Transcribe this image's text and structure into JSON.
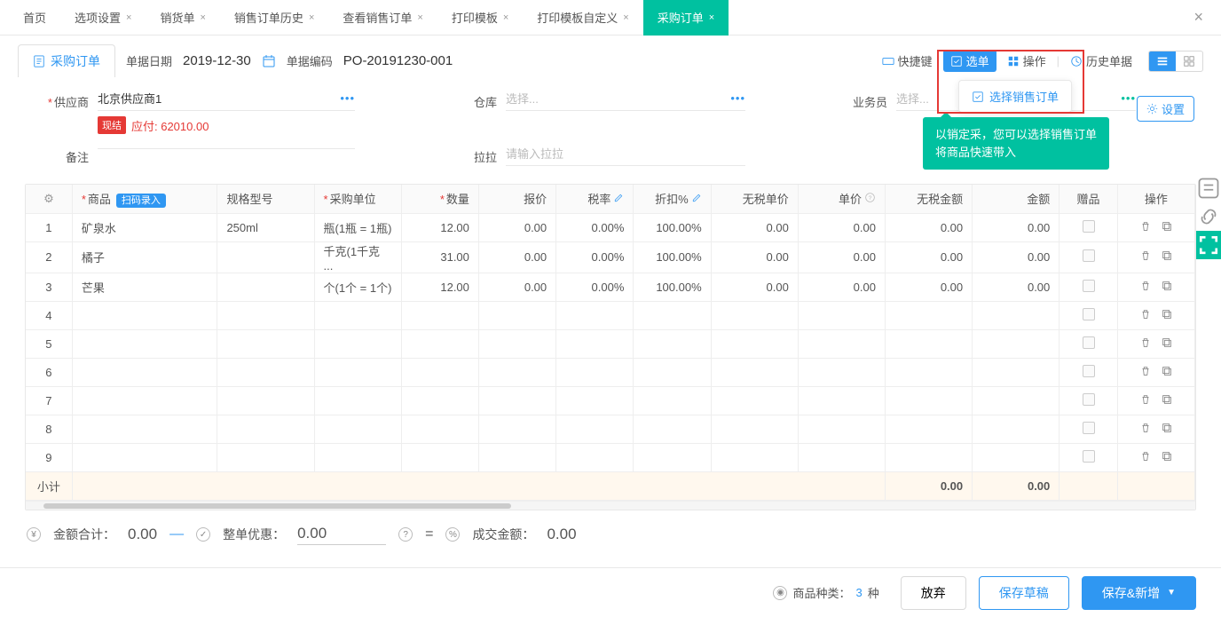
{
  "tabs": [
    {
      "label": "首页",
      "closable": false
    },
    {
      "label": "选项设置",
      "closable": true
    },
    {
      "label": "销货单",
      "closable": true
    },
    {
      "label": "销售订单历史",
      "closable": true
    },
    {
      "label": "查看销售订单",
      "closable": true
    },
    {
      "label": "打印模板",
      "closable": true
    },
    {
      "label": "打印模板自定义",
      "closable": true
    },
    {
      "label": "采购订单",
      "closable": true,
      "active": true
    }
  ],
  "header": {
    "doc_title": "采购订单",
    "date_label": "单据日期",
    "date_value": "2019-12-30",
    "code_label": "单据编码",
    "code_value": "PO-20191230-001",
    "shortcut": "快捷键",
    "select_doc": "选单",
    "operate": "操作",
    "history": "历史单据",
    "dropdown_item": "选择销售订单",
    "tooltip": "以销定采，您可以选择销售订单将商品快速带入",
    "settings": "设置"
  },
  "form": {
    "supplier_label": "供应商",
    "supplier_value": "北京供应商1",
    "pay_tag": "现结",
    "pay_text": "应付: 62010.00",
    "warehouse_label": "仓库",
    "warehouse_placeholder": "选择...",
    "sales_label": "业务员",
    "sales_placeholder": "选择...",
    "remark_label": "备注",
    "lala_label": "拉拉",
    "lala_placeholder": "请输入拉拉"
  },
  "table": {
    "columns": {
      "product": "商品",
      "scan": "扫码录入",
      "spec": "规格型号",
      "purchase_unit": "采购单位",
      "qty": "数量",
      "quote": "报价",
      "tax_rate": "税率",
      "discount": "折扣%",
      "price_no_tax": "无税单价",
      "price": "单价",
      "amount_no_tax": "无税金额",
      "amount": "金额",
      "gift": "赠品",
      "action": "操作"
    },
    "rows": [
      {
        "idx": 1,
        "product": "矿泉水",
        "spec": "250ml",
        "unit": "瓶(1瓶 = 1瓶)",
        "qty": "12.00",
        "quote": "0.00",
        "tax": "0.00%",
        "disc": "100.00%",
        "pnt": "0.00",
        "price": "0.00",
        "ant": "0.00",
        "amt": "0.00"
      },
      {
        "idx": 2,
        "product": "橘子",
        "spec": "",
        "unit": "千克(1千克 ...",
        "qty": "31.00",
        "quote": "0.00",
        "tax": "0.00%",
        "disc": "100.00%",
        "pnt": "0.00",
        "price": "0.00",
        "ant": "0.00",
        "amt": "0.00"
      },
      {
        "idx": 3,
        "product": "芒果",
        "spec": "",
        "unit": "个(1个 = 1个)",
        "qty": "12.00",
        "quote": "0.00",
        "tax": "0.00%",
        "disc": "100.00%",
        "pnt": "0.00",
        "price": "0.00",
        "ant": "0.00",
        "amt": "0.00"
      },
      {
        "idx": 4
      },
      {
        "idx": 5
      },
      {
        "idx": 6
      },
      {
        "idx": 7
      },
      {
        "idx": 8
      },
      {
        "idx": 9
      }
    ],
    "subtotal_label": "小计",
    "subtotal_ant": "0.00",
    "subtotal_amt": "0.00"
  },
  "totals": {
    "sum_label": "金额合计：",
    "sum_value": "0.00",
    "disc_label": "整单优惠：",
    "disc_value": "0.00",
    "deal_label": "成交金额：",
    "deal_value": "0.00"
  },
  "footer": {
    "kinds_label": "商品种类：",
    "kinds_value": "3",
    "kinds_unit": "种",
    "abandon": "放弃",
    "draft": "保存草稿",
    "save_new": "保存&新增"
  },
  "colors": {
    "primary_green": "#00c1a0",
    "primary_blue": "#2f97f2",
    "danger": "#e53935",
    "text": "#555"
  }
}
